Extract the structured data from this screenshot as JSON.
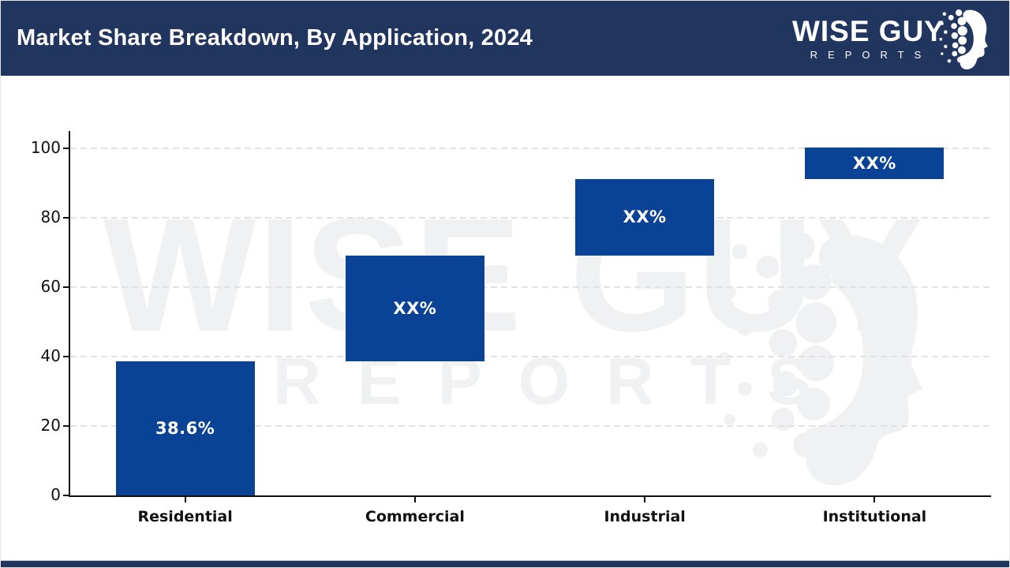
{
  "header": {
    "title": "Market Share Breakdown, By Application, 2024",
    "logo": {
      "line1": "WISE GUY",
      "line2": "REPORTS"
    }
  },
  "watermark": {
    "line1": "WISE GUY",
    "line2": "REPORTS"
  },
  "colors": {
    "header_bg": "#21365f",
    "footer_bg": "#21365f",
    "bar": "#0a4296",
    "bar_label_text": "#ffffff",
    "grid": "#e2e2e2",
    "axis": "#111111",
    "watermark": "#f0f1f3"
  },
  "chart_data": {
    "type": "bar",
    "subtype": "waterfall-floating-bars",
    "title": "Market Share Breakdown, By Application, 2024",
    "categories": [
      "Residential",
      "Commercial",
      "Industrial",
      "Institutional"
    ],
    "segments": [
      {
        "category": "Residential",
        "start": 0,
        "end": 38.6,
        "label": "38.6%"
      },
      {
        "category": "Commercial",
        "start": 38.6,
        "end": 69.2,
        "label": "XX%"
      },
      {
        "category": "Industrial",
        "start": 69.2,
        "end": 91.2,
        "label": "XX%"
      },
      {
        "category": "Institutional",
        "start": 91.2,
        "end": 100.2,
        "label": "XX%"
      }
    ],
    "xlabel": "",
    "ylabel": "",
    "ylim": [
      0,
      105
    ],
    "yticks": [
      0,
      20,
      40,
      60,
      80,
      100
    ],
    "grid": "horizontal-dashed",
    "legend": "none"
  }
}
